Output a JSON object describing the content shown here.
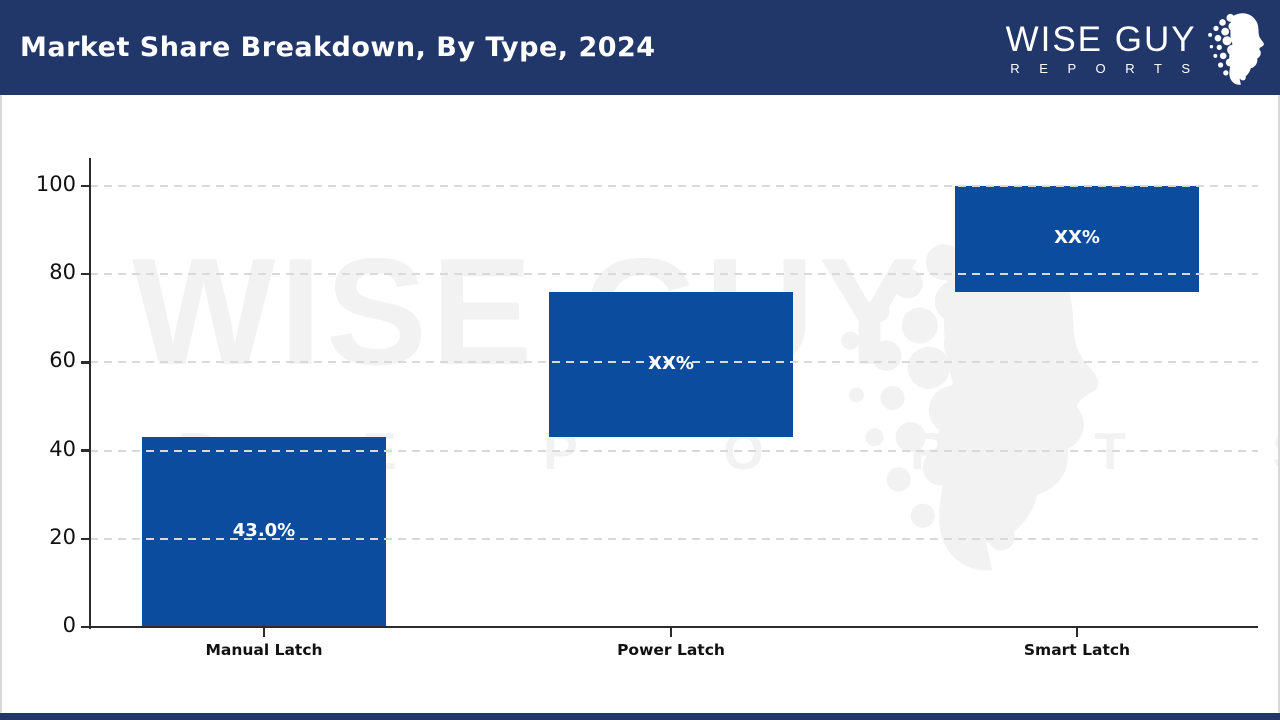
{
  "header": {
    "title": "Market Share Breakdown, By Type, 2024",
    "logo": {
      "line1": "WISE GUY",
      "line2": "R E P O R T S"
    }
  },
  "watermark": {
    "line1": "WISE GUY",
    "line2": "R E P O R T S"
  },
  "colors": {
    "header_bg": "#223769",
    "footer_bg": "#223769",
    "title_text": "#ffffff",
    "logo_text": "#ffffff",
    "bar": "#0b4c9f",
    "bar_label": "#ffffff",
    "grid": "#d9d9d9",
    "axis": "#2b2b2b",
    "tick_text": "#111111",
    "watermark": "#f2f2f2",
    "frame": "#d8d8d8"
  },
  "chart_data": {
    "type": "bar",
    "subtype": "floating-waterfall",
    "title": "Market Share Breakdown, By Type, 2024",
    "categories": [
      "Manual Latch",
      "Power Latch",
      "Smart Latch"
    ],
    "bars": [
      {
        "category": "Manual Latch",
        "start": 0,
        "end": 43,
        "label": "43.0%"
      },
      {
        "category": "Power Latch",
        "start": 43,
        "end": 76,
        "label": "XX%"
      },
      {
        "category": "Smart Latch",
        "start": 76,
        "end": 100,
        "label": "XX%"
      }
    ],
    "xlabel": "",
    "ylabel": "",
    "yticks": [
      0,
      20,
      40,
      60,
      80,
      100
    ],
    "ylim": [
      0,
      106
    ],
    "grid": "horizontal-dashed",
    "legend": "none"
  }
}
